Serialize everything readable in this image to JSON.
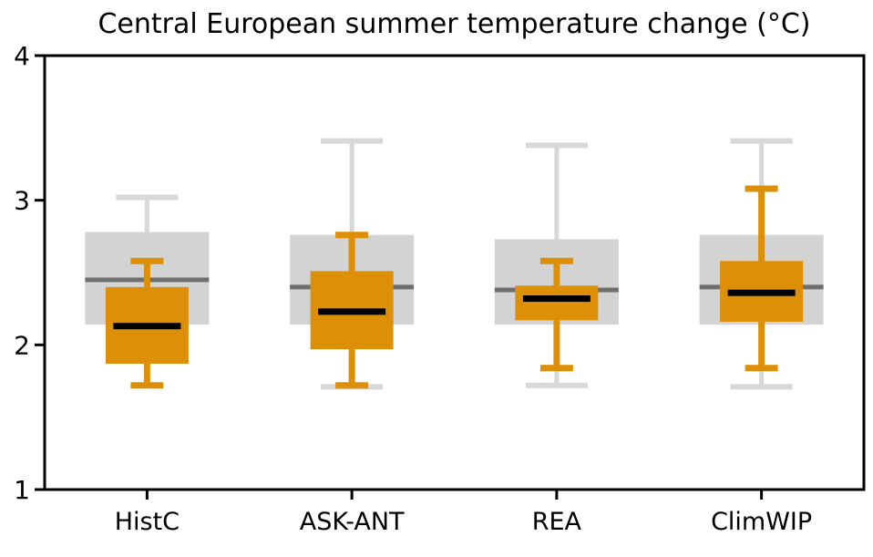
{
  "chart_data": {
    "type": "boxplot",
    "title": "Central European summer temperature change (°C)",
    "categories": [
      "HistC",
      "ASK-ANT",
      "REA",
      "ClimWIP"
    ],
    "xlabel": "",
    "ylabel": "",
    "ylim": [
      1,
      4
    ],
    "yticks": [
      "4",
      "3",
      "2",
      "1"
    ],
    "ytick_values": [
      4,
      3,
      2,
      1
    ],
    "grid": false,
    "legend": "none",
    "colors": {
      "unweighted_box": "#d3d3d3",
      "unweighted_whisker": "#d8d8d8",
      "unweighted_median": "#6e6e6e",
      "weighted_box": "#de8f08",
      "weighted_whisker": "#de8f08",
      "weighted_median": "#000000",
      "axis": "#000000"
    },
    "series": [
      {
        "id": "unweighted",
        "boxes": [
          {
            "category": "HistC",
            "whisker_low": null,
            "q1": 2.14,
            "median": 2.45,
            "q3": 2.78,
            "whisker_high": 3.02
          },
          {
            "category": "ASK-ANT",
            "whisker_low": 1.71,
            "q1": 2.14,
            "median": 2.4,
            "q3": 2.76,
            "whisker_high": 3.41
          },
          {
            "category": "REA",
            "whisker_low": 1.72,
            "q1": 2.14,
            "median": 2.38,
            "q3": 2.73,
            "whisker_high": 3.38
          },
          {
            "category": "ClimWIP",
            "whisker_low": 1.71,
            "q1": 2.14,
            "median": 2.4,
            "q3": 2.76,
            "whisker_high": 3.41
          }
        ]
      },
      {
        "id": "weighted",
        "boxes": [
          {
            "category": "HistC",
            "whisker_low": 1.72,
            "q1": 1.87,
            "median": 2.13,
            "q3": 2.4,
            "whisker_high": 2.58
          },
          {
            "category": "ASK-ANT",
            "whisker_low": 1.72,
            "q1": 1.97,
            "median": 2.23,
            "q3": 2.51,
            "whisker_high": 2.76
          },
          {
            "category": "REA",
            "whisker_low": 1.84,
            "q1": 2.17,
            "median": 2.32,
            "q3": 2.41,
            "whisker_high": 2.58
          },
          {
            "category": "ClimWIP",
            "whisker_low": 1.84,
            "q1": 2.16,
            "median": 2.36,
            "q3": 2.58,
            "whisker_high": 3.08
          }
        ]
      }
    ]
  }
}
